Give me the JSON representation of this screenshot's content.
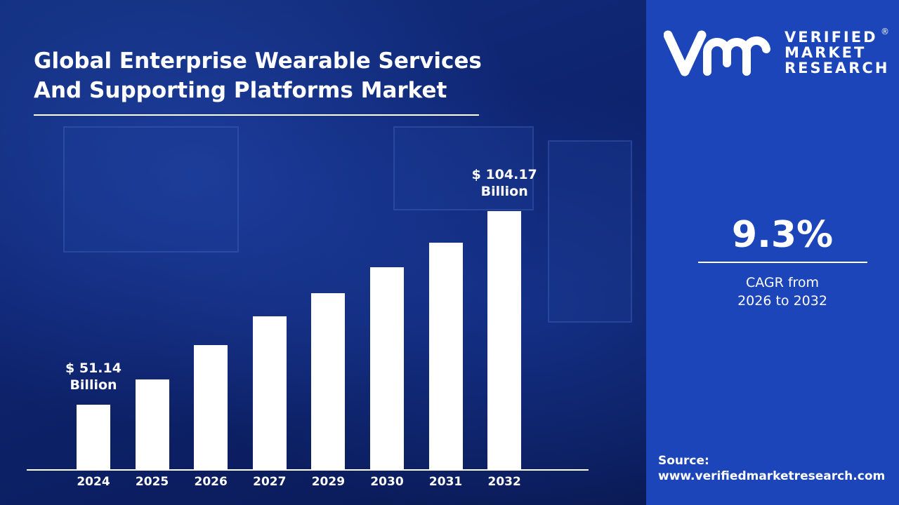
{
  "title_line1": "Global Enterprise Wearable Services",
  "title_line2": "And Supporting Platforms Market",
  "logo": {
    "line1": "VERIFIED",
    "line2": "MARKET",
    "line3": "RESEARCH",
    "mark": "vmr",
    "registered": "®"
  },
  "cagr": {
    "value": "9.3%",
    "label_line1": "CAGR from",
    "label_line2": "2026 to 2032"
  },
  "source": {
    "label": "Source:",
    "url": "www.verifiedmarketresearch.com"
  },
  "colors": {
    "bars": "#ffffff",
    "panel": "#1b45b9",
    "background": "#0c1d5a"
  },
  "chart_data": {
    "type": "bar",
    "title": "Global Enterprise Wearable Services And Supporting Platforms Market",
    "categories": [
      "2024",
      "2025",
      "2026",
      "2027",
      "2029",
      "2030",
      "2031",
      "2032"
    ],
    "values": [
      51.14,
      58.1,
      67.5,
      75.3,
      81.7,
      88.8,
      95.5,
      104.17
    ],
    "unit": "USD Billion",
    "data_labels": [
      {
        "category": "2024",
        "line1": "$ 51.14",
        "line2": "Billion"
      },
      {
        "category": "2032",
        "line1": "$ 104.17",
        "line2": "Billion"
      }
    ],
    "grid": false,
    "legend": "none"
  }
}
